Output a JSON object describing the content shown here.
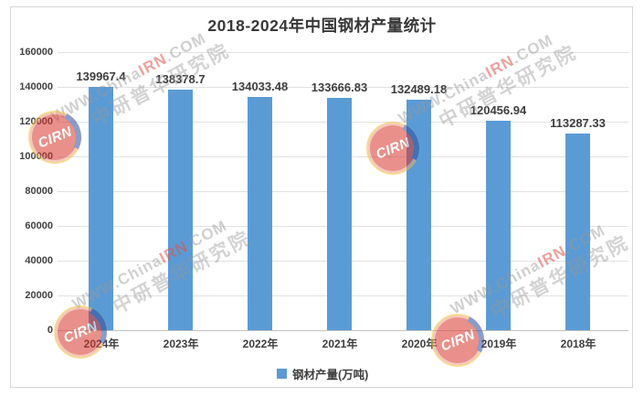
{
  "chart_data": {
    "type": "bar",
    "title": "2018-2024年中国钢材产量统计",
    "categories": [
      "2024年",
      "2023年",
      "2022年",
      "2021年",
      "2020年",
      "2019年",
      "2018年"
    ],
    "values": [
      139967.4,
      138378.7,
      134033.48,
      133666.83,
      132489.18,
      120456.94,
      113287.33
    ],
    "value_labels": [
      "139967.4",
      "138378.7",
      "134033.48",
      "133666.83",
      "132489.18",
      "120456.94",
      "113287.33"
    ],
    "xlabel": "",
    "ylabel": "",
    "ylim": [
      0,
      160000
    ],
    "yticks": [
      0,
      20000,
      40000,
      60000,
      80000,
      100000,
      120000,
      140000,
      160000
    ],
    "grid": true,
    "legend_position": "bottom",
    "legend": {
      "label": "钢材产量(万吨)"
    },
    "bar_color": "#5B9BD5"
  },
  "watermark": {
    "line1_gray1": "WWW.China",
    "line1_red": "IRN",
    "line1_gray2": ".COM",
    "line2": "中研普华研究院",
    "logo_text": "CIRN"
  },
  "colors": {
    "bar_blue": "#5B9BD5",
    "grid_gray": "#e2e2e2",
    "axis_gray": "#c4c4c4",
    "text_dark": "#3d3d3d",
    "frame_border": "#d6d6d6",
    "watermark_gray": "#969696",
    "watermark_red": "#db544a",
    "logo_red": "#d8372b",
    "logo_yellow": "#f0c145",
    "logo_blue": "#2f4d9e"
  }
}
